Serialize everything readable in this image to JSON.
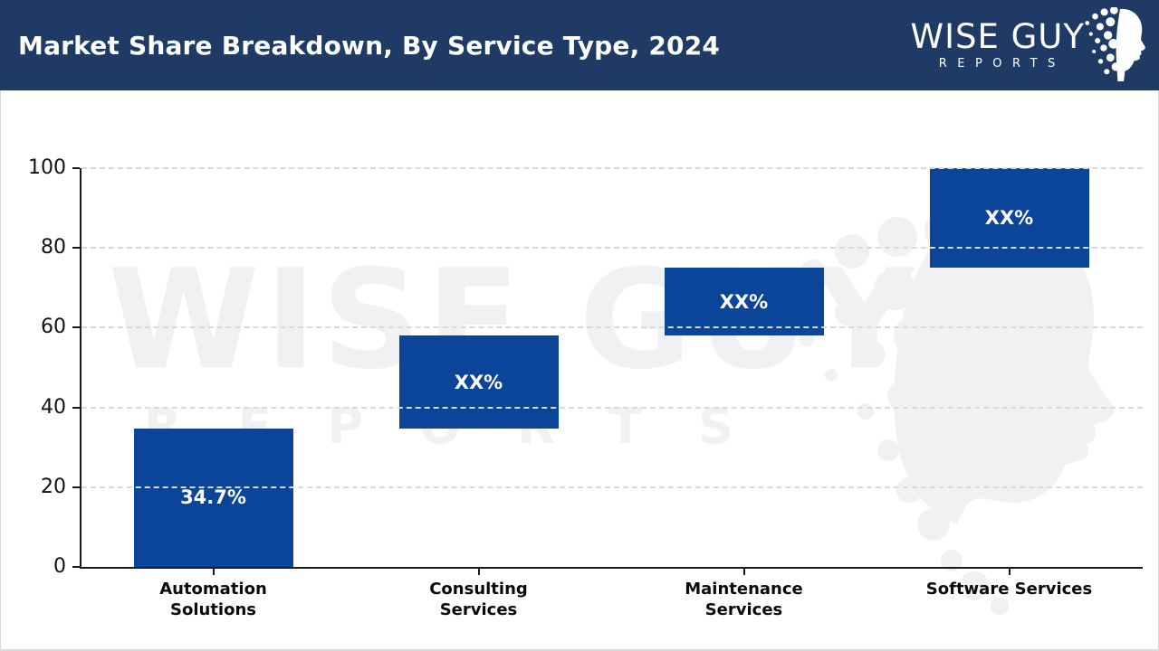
{
  "header": {
    "title": "Market Share Breakdown, By Service Type, 2024",
    "logo": {
      "brand": "WISE GUY",
      "sub": "REPORTS"
    }
  },
  "watermark": {
    "brand": "WISE GUY",
    "sub": "REPORTS"
  },
  "chart_data": {
    "type": "bar",
    "subtype": "waterfall",
    "title": "Market Share Breakdown, By Service Type, 2024",
    "categories": [
      [
        "Automation",
        "Solutions"
      ],
      [
        "Consulting",
        "Services"
      ],
      [
        "Maintenance",
        "Services"
      ],
      [
        "Software Services"
      ]
    ],
    "segments": [
      {
        "start": 0,
        "end": 34.7,
        "label": "34.7%"
      },
      {
        "start": 34.7,
        "end": 58,
        "label": "XX%"
      },
      {
        "start": 58,
        "end": 75,
        "label": "XX%"
      },
      {
        "start": 75,
        "end": 100,
        "label": "XX%"
      }
    ],
    "ylim": [
      0,
      100
    ],
    "yticks": [
      0,
      20,
      40,
      60,
      80,
      100
    ],
    "grid": "horizontal-dashed",
    "legend": "none",
    "bar_color": "#0b4599",
    "value_label_color": "#ffffff",
    "axis_color": "#1a1a1a",
    "grid_color": "#d9d9d9",
    "header_color": "#203a66",
    "watermark_color": "#f1f1f4"
  }
}
